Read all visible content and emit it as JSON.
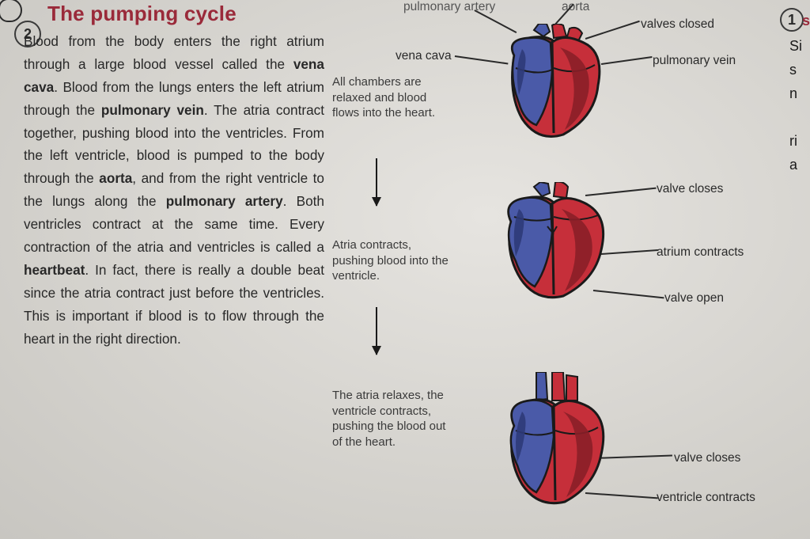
{
  "title": "The pumping cycle",
  "circled_number_left": "2",
  "circled_number_right": "1",
  "body_html": "Blood from the body enters the right atrium through a large blood vessel called the <b>vena cava</b>. Blood from the lungs enters the left atrium through the <b>pulmonary vein</b>. The atria contract together, pushing blood into the ventricles. From the left ventricle, blood is pumped to the body through the <b>aorta</b>, and from the right ventricle to the lungs along the <b>pulmonary artery</b>. Both ventricles contract at the same time. Every contraction of the atria and ventricles is called a <b>heartbeat</b>. In fact, there is really a double beat since the atria contract just before the ventricles. This is important if blood is to flow through the heart in the right direction.",
  "captions": {
    "step1": "All chambers are relaxed and blood flows into the heart.",
    "step2": "Atria contracts, pushing blood into the ventricle.",
    "step3": "The atria relaxes, the ventricle contracts, pushing the blood out of the heart."
  },
  "labels": {
    "pulmonary_artery": "pulmonary artery",
    "aorta": "aorta",
    "valves_closed": "valves closed",
    "vena_cava": "vena cava",
    "pulmonary_vein": "pulmonary vein",
    "valve_closes_1": "valve closes",
    "atrium_contracts": "atrium contracts",
    "valve_open": "valve open",
    "valve_closes_2": "valve closes",
    "ventricle_contracts": "ventricle contracts"
  },
  "right_fragments": {
    "a": "s",
    "b": "Si",
    "c": "s",
    "d": "n",
    "e": "ri",
    "f": "a"
  },
  "colors": {
    "title": "#9a2a3a",
    "text": "#282828",
    "bg": "#d8d6d2",
    "heart_blue": "#4a5aa8",
    "heart_blue_dark": "#2e3a78",
    "heart_red": "#c62f3a",
    "heart_red_dark": "#8a1f28",
    "outline": "#1a1a1a"
  }
}
